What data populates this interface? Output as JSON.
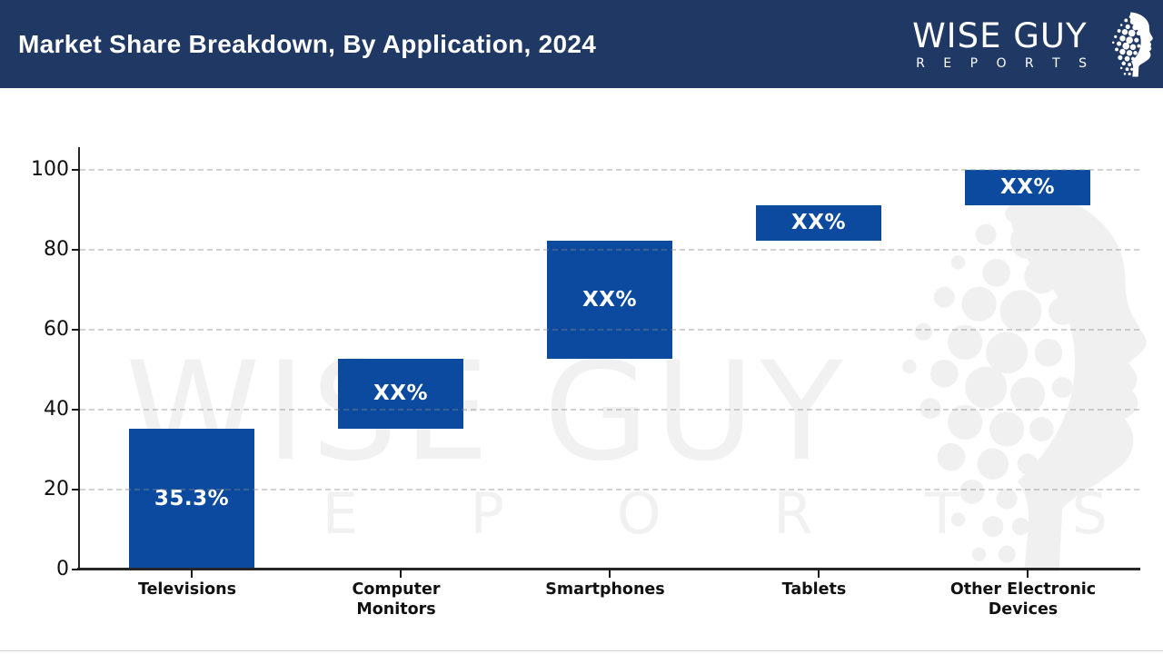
{
  "header": {
    "title": "Market Share Breakdown, By Application, 2024",
    "bg_color": "#1F3864",
    "logo": {
      "wordmark": "WISE GUY",
      "sub": "R E P O R T S"
    }
  },
  "watermark": {
    "line1": "WISE GUY",
    "line2": "R E P O R T S"
  },
  "chart_data": {
    "type": "bar",
    "subtype": "waterfall",
    "title": "Market Share Breakdown, By Application, 2024",
    "categories": [
      "Televisions",
      "Computer Monitors",
      "Smartphones",
      "Tablets",
      "Other Electronic Devices"
    ],
    "segments": [
      {
        "start": 0,
        "end": 35.3,
        "label": "35.3%"
      },
      {
        "start": 35.3,
        "end": 52.8,
        "label": "XX%"
      },
      {
        "start": 52.8,
        "end": 82.3,
        "label": "XX%"
      },
      {
        "start": 82.3,
        "end": 91.2,
        "label": "XX%"
      },
      {
        "start": 91.2,
        "end": 100,
        "label": "XX%"
      }
    ],
    "ylim": [
      0,
      100
    ],
    "yticks": [
      0,
      20,
      40,
      60,
      80,
      100
    ],
    "xlabel": "",
    "ylabel": "",
    "bar_color": "#0B4A9E",
    "grid": true,
    "grid_style": "dashed",
    "legend": false
  }
}
